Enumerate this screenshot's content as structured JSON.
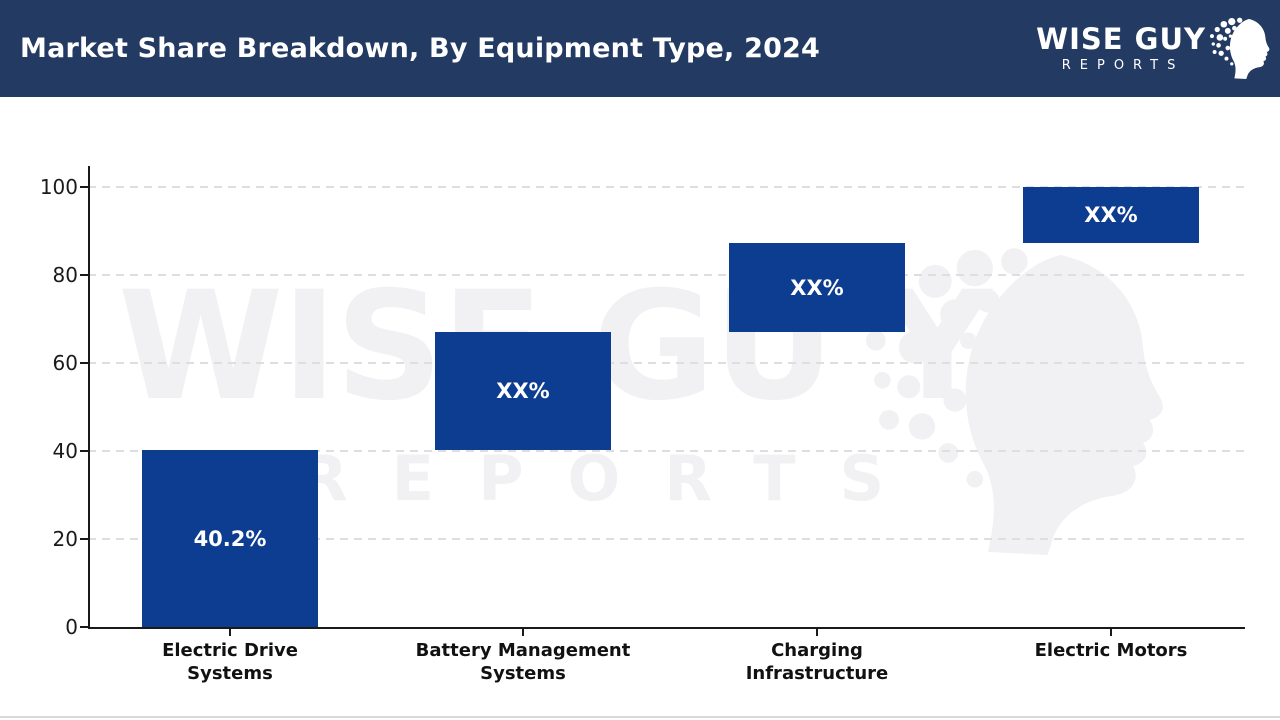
{
  "header": {
    "title": "Market Share Breakdown, By Equipment Type, 2024",
    "logo": {
      "brand": "WISE GUY",
      "sub": "REPORTS",
      "icon": "dotted-head-profile-icon"
    }
  },
  "watermark": {
    "brand": "WISE GU Y",
    "sub": "REPORTS",
    "icon": "dotted-head-profile-icon"
  },
  "colors": {
    "header_bg": "#233a63",
    "bar": "#0d3d91",
    "value_label": "#ffffff",
    "watermark": "#f1f1f3",
    "gridline": "#dedede",
    "axis": "#1a1a1a",
    "category_text": "#111111",
    "footer_rule": "#d9d9d9"
  },
  "chart_data": {
    "type": "bar",
    "subtype": "waterfall-floating-bars",
    "title": "Market Share Breakdown, By Equipment Type, 2024",
    "unit": "%",
    "categories": [
      "Electric Drive\nSystems",
      "Battery Management\nSystems",
      "Charging\nInfrastructure",
      "Electric Motors"
    ],
    "segments": [
      {
        "category": "Electric Drive Systems",
        "start": 0,
        "end": 40.2,
        "label": "40.2%"
      },
      {
        "category": "Battery Management Systems",
        "start": 40.2,
        "end": 67,
        "label": "XX%"
      },
      {
        "category": "Charging Infrastructure",
        "start": 67,
        "end": 87.3,
        "label": "XX%"
      },
      {
        "category": "Electric Motors",
        "start": 87.3,
        "end": 100,
        "label": "XX%"
      }
    ],
    "xlabel": "",
    "ylabel": "",
    "ylim": [
      0,
      100
    ],
    "yticks": [
      0,
      20,
      40,
      60,
      80,
      100
    ],
    "grid": "horizontal-dashed",
    "legend": false
  }
}
